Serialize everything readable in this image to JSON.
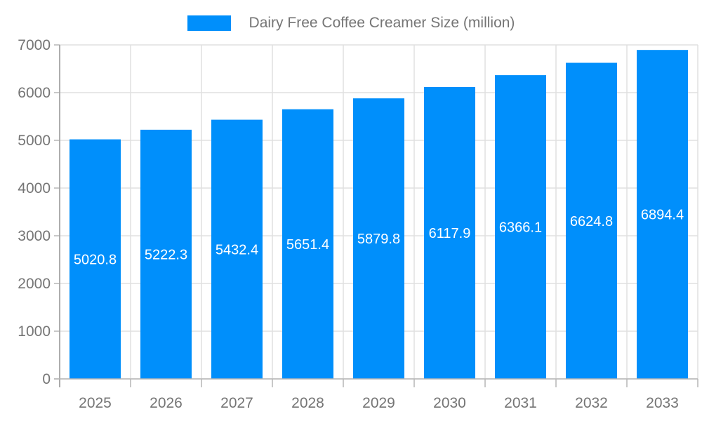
{
  "legend": {
    "label": "Dairy Free Coffee Creamer Size (million)",
    "swatch_color": "#008FFB",
    "text_color": "#757575"
  },
  "chart_data": {
    "type": "bar",
    "title": "Dairy Free Coffee Creamer Size (million)",
    "categories": [
      "2025",
      "2026",
      "2027",
      "2028",
      "2029",
      "2030",
      "2031",
      "2032",
      "2033"
    ],
    "series": [
      {
        "name": "Dairy Free Coffee Creamer Size (million)",
        "values": [
          5020.8,
          5222.3,
          5432.4,
          5651.4,
          5879.8,
          6117.9,
          6366.1,
          6624.8,
          6894.4
        ]
      }
    ],
    "value_labels": [
      "5020.8",
      "5222.3",
      "5432.4",
      "5651.4",
      "5879.8",
      "6117.9",
      "6366.1",
      "6624.8",
      "6894.4"
    ],
    "xlabel": "",
    "ylabel": "",
    "ylim": [
      0,
      7000
    ],
    "y_ticks": [
      0,
      1000,
      2000,
      3000,
      4000,
      5000,
      6000,
      7000
    ],
    "grid": true,
    "legend_position": "top",
    "colors": {
      "bar": "#008FFB",
      "value_label": "#ffffff",
      "axis_label": "#757575",
      "grid": "#e0e0e0",
      "y_axis_line": "#999999",
      "x_axis_line": "#b6b6b6",
      "tick": "#b6b6b6"
    }
  }
}
